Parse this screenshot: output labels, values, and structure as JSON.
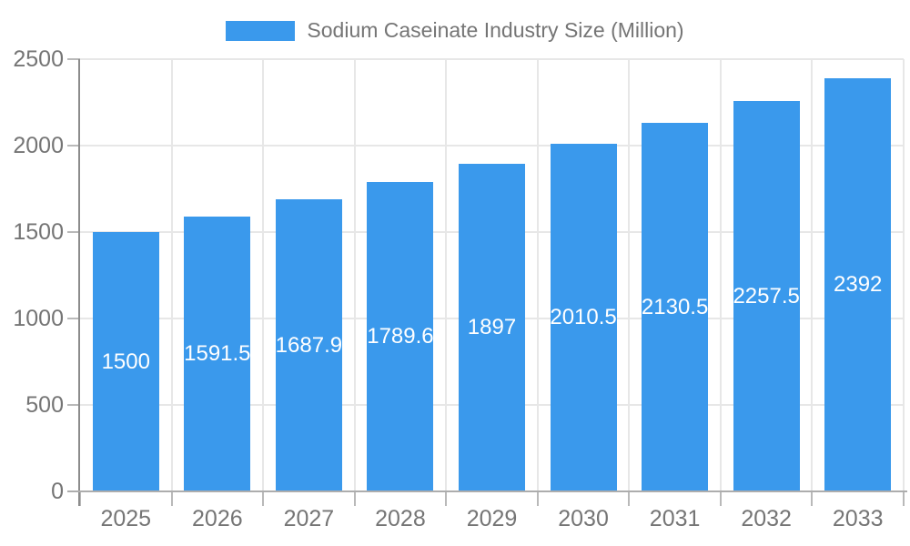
{
  "chart_data": {
    "type": "bar",
    "title": "Sodium Caseinate Industry Size (Million)",
    "legend": {
      "label": "Sodium Caseinate Industry Size (Million)",
      "position": "top-center",
      "swatch": "filled-rect"
    },
    "categories": [
      "2025",
      "2026",
      "2027",
      "2028",
      "2029",
      "2030",
      "2031",
      "2032",
      "2033"
    ],
    "series": [
      {
        "name": "Sodium Caseinate Industry Size (Million)",
        "values": [
          1500,
          1591.5,
          1687.9,
          1789.6,
          1897,
          2010.5,
          2130.5,
          2257.5,
          2392
        ]
      }
    ],
    "value_labels": [
      "1500",
      "1591.5",
      "1687.9",
      "1789.6",
      "1897",
      "2010.5",
      "2130.5",
      "2257.5",
      "2392"
    ],
    "value_label_position": "inside-center",
    "xlabel": "",
    "ylabel": "",
    "ylim": [
      0,
      2500
    ],
    "yticks": [
      0,
      500,
      1000,
      1500,
      2000,
      2500
    ],
    "grid": true,
    "colors": {
      "bar": "#3a99ec",
      "grid": "#e7e7e7",
      "axis_line": "#8c8c8c",
      "baseline": "#adadad",
      "tick": "#b9b9b9",
      "axis_text": "#757575",
      "value_label": "#ffffff",
      "background": "#ffffff"
    }
  }
}
